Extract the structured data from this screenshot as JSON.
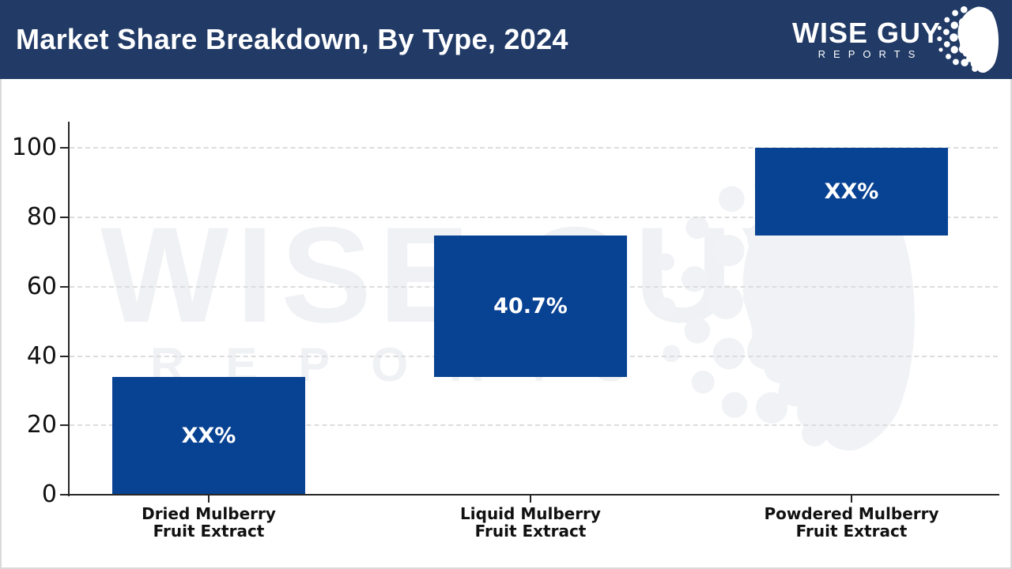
{
  "header": {
    "title": "Market Share Breakdown, By Type, 2024",
    "bg_color": "#213a66",
    "text_color": "#ffffff",
    "logo": {
      "line1": "WISE GUY",
      "line2": "REPORTS"
    }
  },
  "watermark": {
    "line1": "WISE GUY",
    "line2": "REPORTS",
    "color": "#eff1f4"
  },
  "frame": {
    "border_color": "#dadada"
  },
  "chart_data": {
    "type": "bar",
    "subtype": "stacked-percentage-waterfall (each bar starts where the previous ends, summing to 100%)",
    "title": "Market Share Breakdown, By Type, 2024",
    "xlabel": "",
    "ylabel": "",
    "ylim": [
      0,
      106
    ],
    "yticks": [
      "0",
      "20",
      "40",
      "60",
      "80",
      "100"
    ],
    "grid": "horizontal-dashed",
    "legend": "none",
    "bar_color": "#084292",
    "bar_label_color": "#ffffff",
    "axis_color": "#262626",
    "grid_color": "#dcdcdc",
    "bars": [
      {
        "category": [
          "Dried Mulberry",
          "Fruit Extract"
        ],
        "label": "XX%",
        "start": 0,
        "end": 34,
        "height_pct_est": 34.0
      },
      {
        "category": [
          "Liquid Mulberry",
          "Fruit Extract"
        ],
        "label": "40.7%",
        "start": 34,
        "end": 74.7,
        "height_pct_est": 40.7
      },
      {
        "category": [
          "Powdered Mulberry",
          "Fruit Extract"
        ],
        "label": "XX%",
        "start": 74.7,
        "end": 100,
        "height_pct_est": 25.3
      }
    ]
  }
}
